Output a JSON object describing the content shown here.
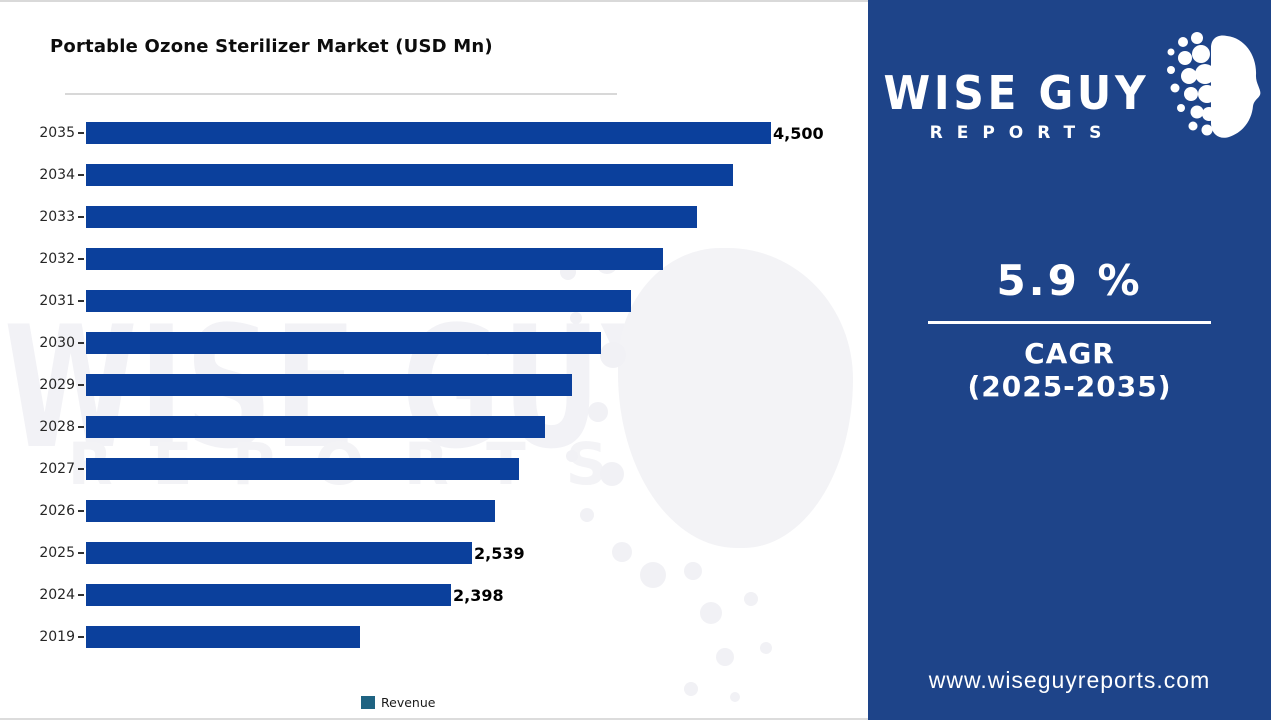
{
  "chart": {
    "title": "Portable Ozone Sterilizer Market (USD Mn)",
    "legend_label": "Revenue"
  },
  "chart_data": {
    "type": "bar",
    "orientation": "horizontal",
    "title": "Portable Ozone Sterilizer Market (USD Mn)",
    "categories": [
      "2035",
      "2034",
      "2033",
      "2032",
      "2031",
      "2030",
      "2029",
      "2028",
      "2027",
      "2026",
      "2025",
      "2024",
      "2019"
    ],
    "values": [
      4500,
      4253,
      4016,
      3793,
      3581,
      3382,
      3193,
      3015,
      2847,
      2689,
      2539,
      2398,
      1800
    ],
    "data_labels": [
      "4,500",
      "",
      "",
      "",
      "",
      "",
      "",
      "",
      "",
      "",
      "2,539",
      "2,398",
      ""
    ],
    "xlim": [
      0,
      4500
    ],
    "grid": false,
    "legend": [
      "Revenue"
    ],
    "legend_position": "bottom"
  },
  "panel": {
    "logo_title": "WISE GUY",
    "logo_subtitle": "REPORTS",
    "cagr_value": "5.9 %",
    "cagr_label": "CAGR",
    "cagr_period": "(2025-2035)",
    "website": "www.wiseguyreports.com"
  },
  "watermark": {
    "title": "WISE GUY",
    "subtitle": "REPORTS"
  },
  "colors": {
    "bar": "#0b409c",
    "legend_swatch": "#1f6382",
    "panel": "#1e4489",
    "divider": "#d8d8d8",
    "watermark": "#f2f2f6"
  }
}
